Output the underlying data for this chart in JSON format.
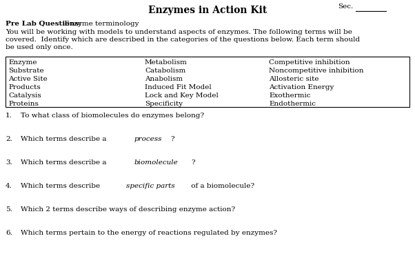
{
  "title": "Enzymes in Action Kit",
  "sec_label": "Sec.",
  "pre_lab_bold": "Pre Lab Questions:",
  "pre_lab_normal": " Enzyme terminology",
  "intro_lines": [
    "You will be working with models to understand aspects of enzymes. The following terms will be",
    "covered.  Identify which are described in the categories of the questions below. Each term should",
    "be used only once."
  ],
  "table_col1": [
    "Enzyme",
    "Substrate",
    "Active Site",
    "Products",
    "Catalysis",
    "Proteins"
  ],
  "table_col2": [
    "Metabolism",
    "Catabolism",
    "Anabolism",
    "Induced Fit Model",
    "Lock and Key Model",
    "Specificity"
  ],
  "table_col3": [
    "Competitive inhibition",
    "Noncompetitive inhibition",
    "Allosteric site",
    "Activation Energy",
    "Exothermic",
    "Endothermic"
  ],
  "questions": [
    {
      "num": "1.",
      "pre": "To what class of biomolecules do enzymes belong?",
      "italic": "",
      "post": ""
    },
    {
      "num": "2.",
      "pre": "Which terms describe a ",
      "italic": "process",
      "post": "?"
    },
    {
      "num": "3.",
      "pre": "Which terms describe a ",
      "italic": "biomolecule",
      "post": "?"
    },
    {
      "num": "4.",
      "pre": "Which terms describe ",
      "italic": "specific parts",
      "post": " of a biomolecule?"
    },
    {
      "num": "5.",
      "pre": "Which 2 terms describe ways of describing enzyme action?",
      "italic": "",
      "post": ""
    },
    {
      "num": "6.",
      "pre": "Which terms pertain to the energy of reactions regulated by enzymes?",
      "italic": "",
      "post": ""
    }
  ],
  "bg_color": "#ffffff",
  "text_color": "#000000",
  "font_size": 7.5,
  "title_font_size": 10.0
}
